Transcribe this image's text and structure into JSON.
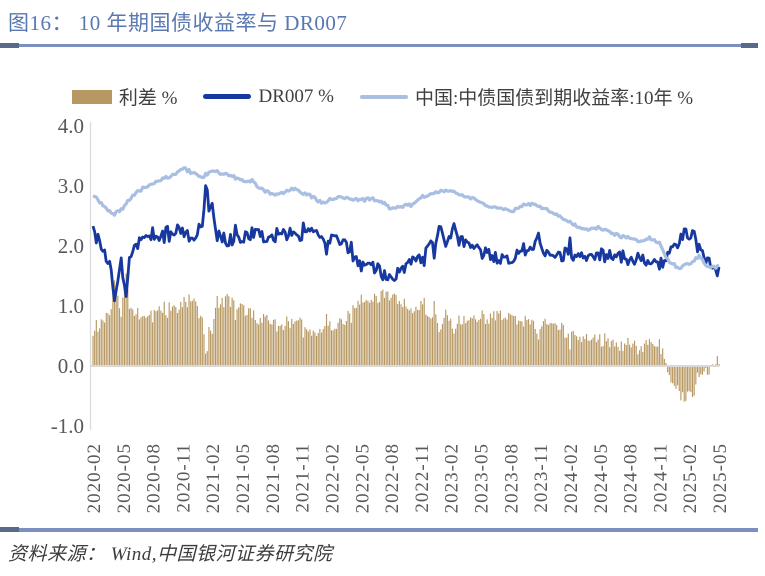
{
  "header": {
    "title": "图16： 10 年期国债收益率与 DR007"
  },
  "legend": [
    {
      "label": "利差 %",
      "swatch": "bar",
      "color": "#B79862"
    },
    {
      "label": "DR007 %",
      "swatch": "line",
      "color": "#17389E"
    },
    {
      "label": "中国:中债国债到期收益率:10年 %",
      "swatch": "line",
      "color": "#A9BFE2"
    }
  ],
  "source": {
    "text": "资料来源： Wind,中国银河证券研究院"
  },
  "chart_data": {
    "type": "combo",
    "title": "10 年期国债收益率与 DR007",
    "legend_position": "top",
    "grid": "off",
    "x_unit": "month",
    "x_start": "2020-02",
    "x_end": "2025-05",
    "x_tick_labels": [
      "2020-02",
      "2020-05",
      "2020-08",
      "2020-11",
      "2021-02",
      "2021-05",
      "2021-08",
      "2021-11",
      "2022-02",
      "2022-05",
      "2022-08",
      "2022-11",
      "2023-02",
      "2023-05",
      "2023-08",
      "2023-11",
      "2024-02",
      "2024-05",
      "2024-08",
      "2024-11",
      "2025-02",
      "2025-05"
    ],
    "y_ticks": [
      "4.0",
      "3.0",
      "2.0",
      "1.0",
      "0.0",
      "-1.0"
    ],
    "ylim": [
      -1.0,
      4.0
    ],
    "axis_text_color": "#595959",
    "axis_line_color": "#D9D9D9",
    "series": [
      {
        "name": "利差 %",
        "type": "bar",
        "color": "#B79862",
        "derived": "yield10y_minus_dr007"
      },
      {
        "name": "DR007 %",
        "type": "line",
        "color": "#17389E",
        "monthly_values": [
          2.25,
          1.95,
          1.5,
          1.58,
          1.95,
          2.12,
          2.2,
          2.2,
          2.25,
          2.28,
          2.05,
          2.4,
          2.22,
          2.12,
          2.1,
          2.15,
          2.22,
          2.15,
          2.15,
          2.22,
          2.18,
          2.15,
          2.22,
          2.1,
          2.1,
          2.1,
          1.82,
          1.62,
          1.7,
          1.56,
          1.44,
          1.62,
          1.72,
          1.8,
          2.0,
          2.05,
          2.15,
          2.08,
          2.08,
          1.9,
          1.85,
          1.8,
          1.8,
          1.95,
          1.95,
          1.95,
          1.85,
          1.85,
          1.88,
          1.85,
          1.85,
          1.85,
          1.83,
          1.8,
          1.72,
          1.8,
          1.72,
          1.68,
          1.85,
          2.12,
          2.15,
          1.95,
          1.72,
          1.58
        ]
      },
      {
        "name": "中国:中债国债到期收益率:10年 %",
        "type": "line",
        "color": "#A9BFE2",
        "monthly_values": [
          2.86,
          2.68,
          2.52,
          2.62,
          2.85,
          2.96,
          3.05,
          3.12,
          3.18,
          3.3,
          3.22,
          3.15,
          3.26,
          3.2,
          3.16,
          3.1,
          3.09,
          2.94,
          2.86,
          2.88,
          2.96,
          2.9,
          2.82,
          2.72,
          2.79,
          2.81,
          2.77,
          2.76,
          2.79,
          2.74,
          2.62,
          2.66,
          2.68,
          2.82,
          2.87,
          2.91,
          2.9,
          2.86,
          2.81,
          2.71,
          2.66,
          2.64,
          2.57,
          2.66,
          2.7,
          2.66,
          2.58,
          2.49,
          2.4,
          2.29,
          2.28,
          2.31,
          2.25,
          2.16,
          2.15,
          2.08,
          2.13,
          2.05,
          1.72,
          1.64,
          1.71,
          1.83,
          1.64,
          1.66
        ]
      }
    ],
    "dr007_spikes": [
      {
        "m": 2.2,
        "v": 1.05
      },
      {
        "m": 3.3,
        "v": 1.1
      },
      {
        "m": 11.4,
        "v": 3.18
      },
      {
        "m": 11.95,
        "v": 2.8
      },
      {
        "m": 34.9,
        "v": 2.42
      },
      {
        "m": 36.3,
        "v": 2.4
      },
      {
        "m": 44.8,
        "v": 2.25
      },
      {
        "m": 59.6,
        "v": 2.33
      },
      {
        "m": 60.4,
        "v": 2.32
      }
    ]
  }
}
